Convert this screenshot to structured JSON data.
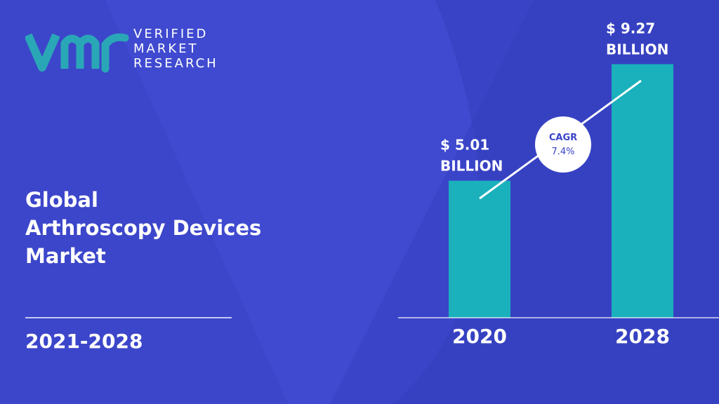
{
  "brand": {
    "line1": "VERIFIED",
    "line2": "MARKET",
    "line3": "RESEARCH",
    "logo_color": "#2aa7b6"
  },
  "title": {
    "line1": "Global",
    "line2": "Arthroscopy Devices",
    "line3": "Market"
  },
  "period": "2021-2028",
  "colors": {
    "background": "#3a44c9",
    "bar": "#1ab0bc",
    "text": "#ffffff",
    "cagr_text": "#3a44c9"
  },
  "chart_data": {
    "type": "bar",
    "categories": [
      "2020",
      "2028"
    ],
    "values": [
      5.01,
      9.27
    ],
    "data_labels": [
      [
        "$ 5.01",
        "BILLION"
      ],
      [
        "$ 9.27",
        "BILLION"
      ]
    ],
    "ylim": [
      0,
      10
    ],
    "annotation": {
      "line1": "CAGR",
      "line2": "7.4%"
    }
  }
}
